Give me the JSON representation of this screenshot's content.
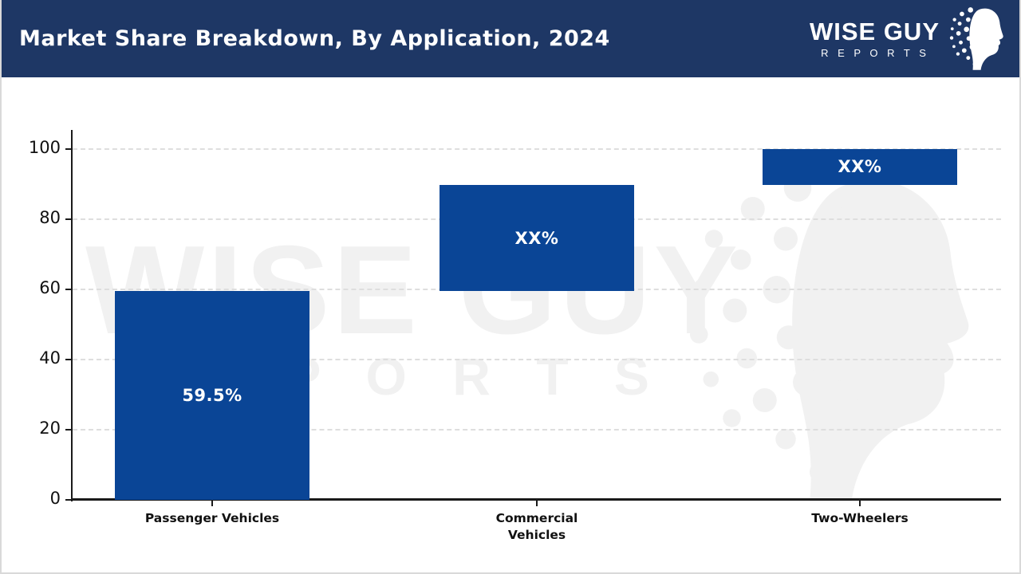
{
  "header": {
    "title": "Market Share Breakdown, By Application, 2024"
  },
  "logo": {
    "line1": "WISE GUY",
    "line2": "R E P O R T S"
  },
  "watermark": {
    "line1": "WISE GUY",
    "line2": "R E P O R T S"
  },
  "chart_data": {
    "type": "bar",
    "subtype": "floating-segment-waterfall",
    "title": "Market Share Breakdown, By Application, 2024",
    "categories": [
      "Passenger Vehicles",
      "Commercial\nVehicles",
      "Two-Wheelers"
    ],
    "segments": [
      {
        "category": "Passenger Vehicles",
        "start": 0,
        "end": 59.5,
        "label": "59.5%"
      },
      {
        "category": "Commercial Vehicles",
        "start": 59.5,
        "end": 89.8,
        "label": "XX%"
      },
      {
        "category": "Two-Wheelers",
        "start": 89.8,
        "end": 100,
        "label": "XX%"
      }
    ],
    "y_ticks": [
      0,
      20,
      40,
      60,
      80,
      100
    ],
    "ylim": [
      0,
      100
    ],
    "xlabel": "",
    "ylabel": "",
    "grid": "horizontal-dashed",
    "legend": "none",
    "bar_color": "#0a4596",
    "bar_label_color": "#ffffff"
  },
  "colors": {
    "header_bg": "#1e3765",
    "bar": "#0a4596",
    "grid": "#dedede",
    "axis": "#1a1a1a",
    "watermark": "#f1f1f1",
    "page_border": "#d9d9d9"
  }
}
